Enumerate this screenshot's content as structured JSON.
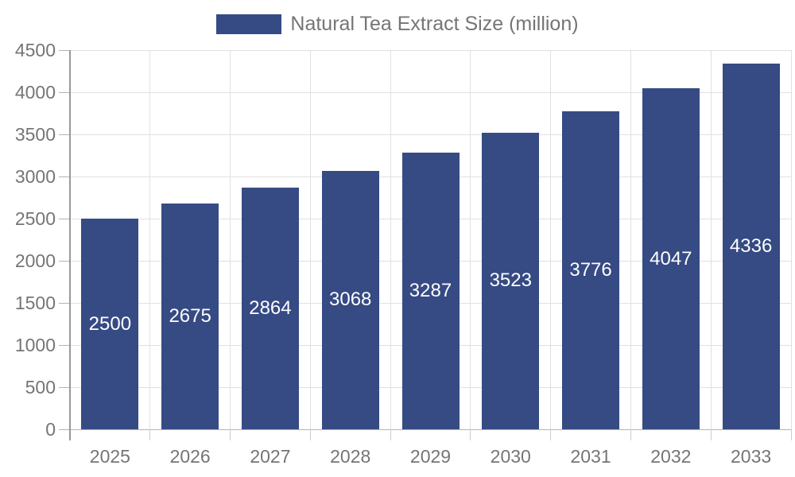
{
  "legend": {
    "label": "Natural Tea Extract Size (million)"
  },
  "chart_data": {
    "type": "bar",
    "title": "Natural Tea Extract Size (million)",
    "categories": [
      "2025",
      "2026",
      "2027",
      "2028",
      "2029",
      "2030",
      "2031",
      "2032",
      "2033"
    ],
    "series": [
      {
        "name": "Natural Tea Extract Size (million)",
        "values": [
          2500,
          2675,
          2864,
          3068,
          3287,
          3523,
          3776,
          4047,
          4336
        ]
      }
    ],
    "xlabel": "",
    "ylabel": "",
    "ylim": [
      0,
      4500
    ],
    "yticks": [
      0,
      500,
      1000,
      1500,
      2000,
      2500,
      3000,
      3500,
      4000,
      4500
    ],
    "grid": true,
    "legend_position": "top-center",
    "bar_label_position": "inside-center",
    "colors": {
      "bar": "#364A84",
      "bar_label": "#FFFFFF",
      "axis_text": "#757575",
      "grid_line": "#E0E0E0",
      "axis_line": "#999999",
      "axis_line_x": "#B3B3B3",
      "tick_line": "#CCCCCC",
      "background": "#FFFFFF"
    }
  }
}
